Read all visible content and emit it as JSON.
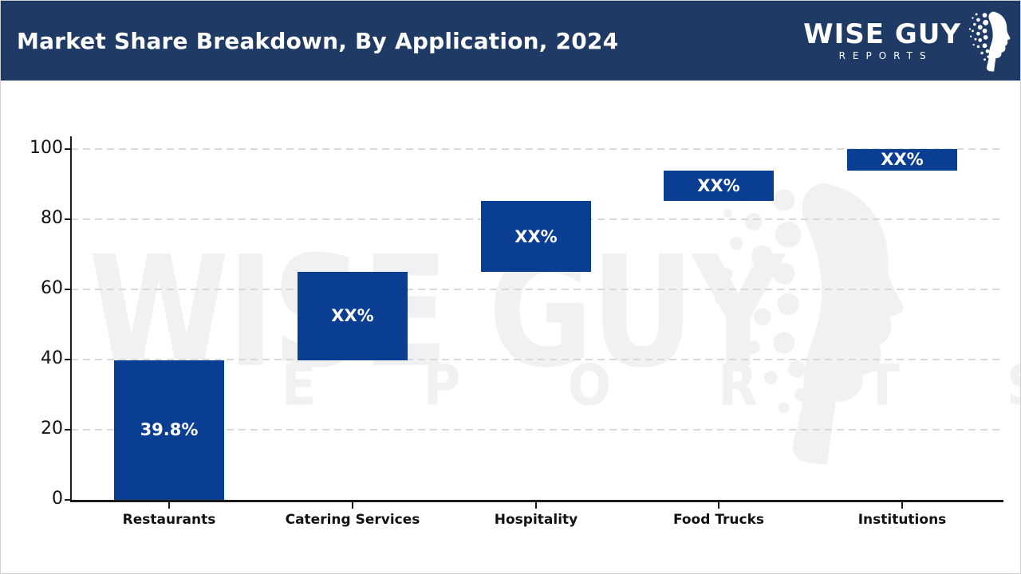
{
  "header": {
    "title": "Market Share Breakdown, By Application, 2024",
    "bg_color": "#203a66",
    "logo": {
      "line1": "WISE GUY",
      "line2": "REPORTS"
    }
  },
  "watermark": {
    "line1": "WISE GUY",
    "line2": "R E P O R T S"
  },
  "chart_data": {
    "type": "bar",
    "subtype": "waterfall",
    "title": "Market Share Breakdown, By Application, 2024",
    "categories": [
      "Restaurants",
      "Catering Services",
      "Hospitality",
      "Food Trucks",
      "Institutions"
    ],
    "segments": [
      {
        "category": "Restaurants",
        "start": 0,
        "end": 39.8,
        "label": "39.8%"
      },
      {
        "category": "Catering Services",
        "start": 39.8,
        "end": 65.0,
        "label": "XX%"
      },
      {
        "category": "Hospitality",
        "start": 65.0,
        "end": 85.2,
        "label": "XX%"
      },
      {
        "category": "Food Trucks",
        "start": 85.3,
        "end": 93.9,
        "label": "XX%"
      },
      {
        "category": "Institutions",
        "start": 93.9,
        "end": 100,
        "label": "XX%"
      }
    ],
    "xlabel": "",
    "ylabel": "",
    "ylim": [
      0,
      100
    ],
    "yticks": [
      0,
      20,
      40,
      60,
      80,
      100
    ],
    "grid": "horizontal-dashed",
    "legend": "none",
    "bar_color": "#0a3e92",
    "bar_label_color": "#ffffff",
    "grid_color": "#d9d9d9",
    "axis_color": "#1a1a1a",
    "tick_label_color": "#111111"
  }
}
